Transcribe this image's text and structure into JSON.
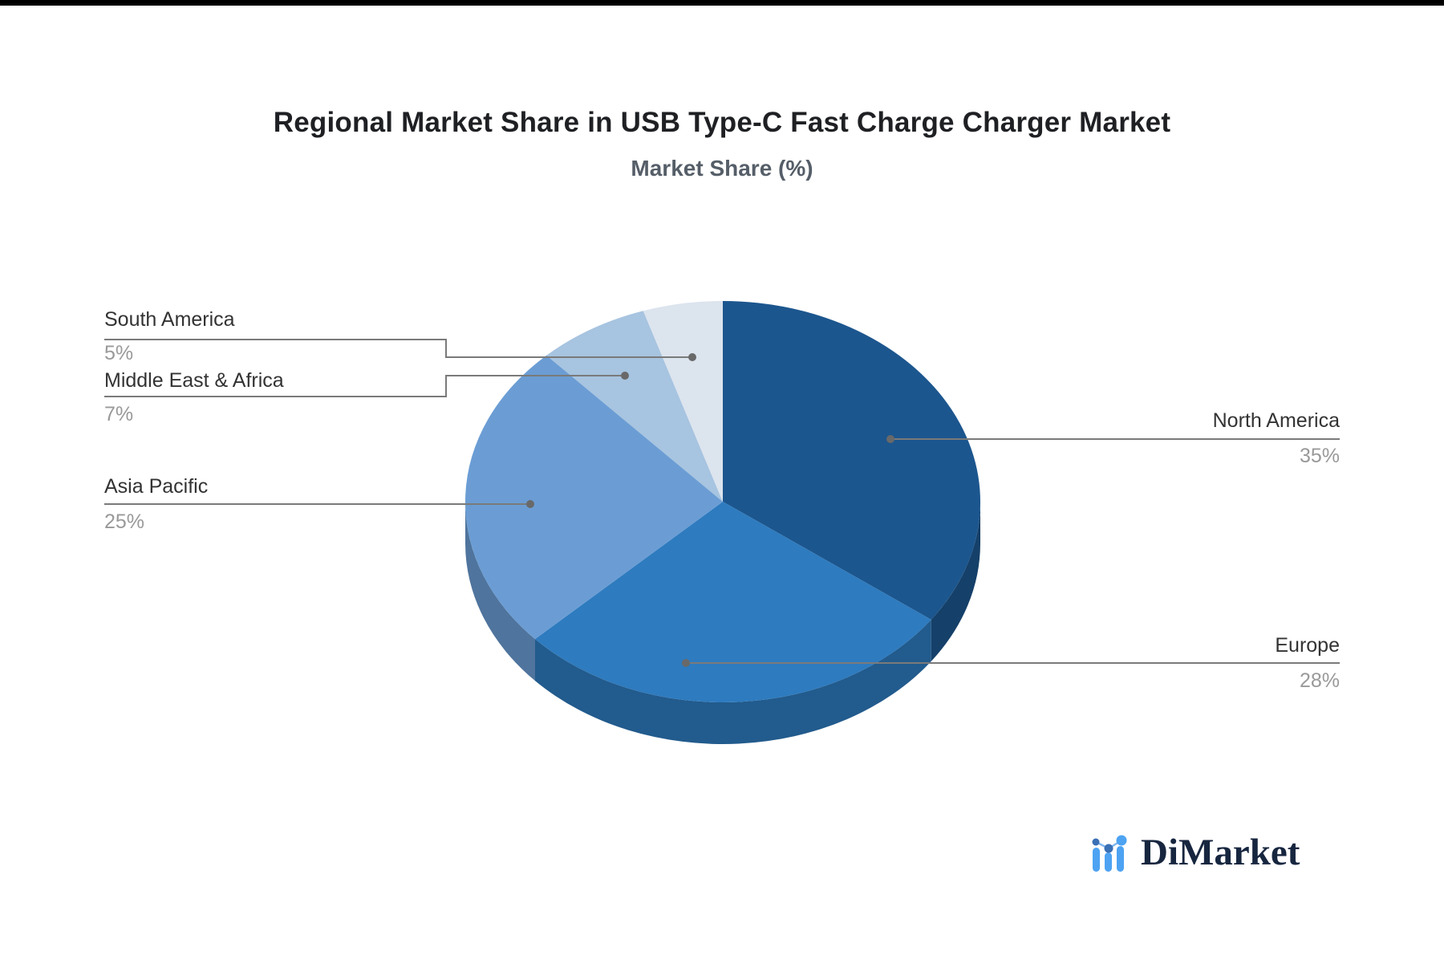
{
  "title": "Regional Market Share in USB Type-C Fast Charge Charger Market",
  "subtitle": "Market Share (%)",
  "chart_data": {
    "type": "pie",
    "style": "3d-pie",
    "title": "Regional Market Share in USB Type-C Fast Charge Charger Market",
    "subtitle": "Market Share (%)",
    "unit": "%",
    "start_angle_deg": 0,
    "direction": "clockwise",
    "legend_position": "callout-labels",
    "categories": [
      "North America",
      "Europe",
      "Asia Pacific",
      "Middle East & Africa",
      "South America"
    ],
    "values": [
      35,
      28,
      25,
      7,
      5
    ],
    "series": [
      {
        "label": "North America",
        "value": 35,
        "pct_label": "35%",
        "color": "#1c568e",
        "side_color": "#154069",
        "callout_side": "right"
      },
      {
        "label": "Europe",
        "value": 28,
        "pct_label": "28%",
        "color": "#2e7bbf",
        "side_color": "#225b8d",
        "callout_side": "right"
      },
      {
        "label": "Asia Pacific",
        "value": 25,
        "pct_label": "25%",
        "color": "#6b9dd4",
        "side_color": "#4f749d",
        "callout_side": "left"
      },
      {
        "label": "Middle East & Africa",
        "value": 7,
        "pct_label": "7%",
        "color": "#a7c4e0",
        "side_color": "#7b91a6",
        "callout_side": "left"
      },
      {
        "label": "South America",
        "value": 5,
        "pct_label": "5%",
        "color": "#dce4ee",
        "side_color": "#a2a8b0",
        "callout_side": "left"
      }
    ],
    "connector_color": "#7a7a7a",
    "label_color": "#333333",
    "percent_color": "#999999"
  },
  "branding": {
    "logo_text": "DiMarket",
    "logo_icon": "bar-chart-dots-icon",
    "logo_bar_color": "#4da3f2",
    "logo_dot_color": "#3a70b5",
    "logo_text_color": "#17263f"
  }
}
